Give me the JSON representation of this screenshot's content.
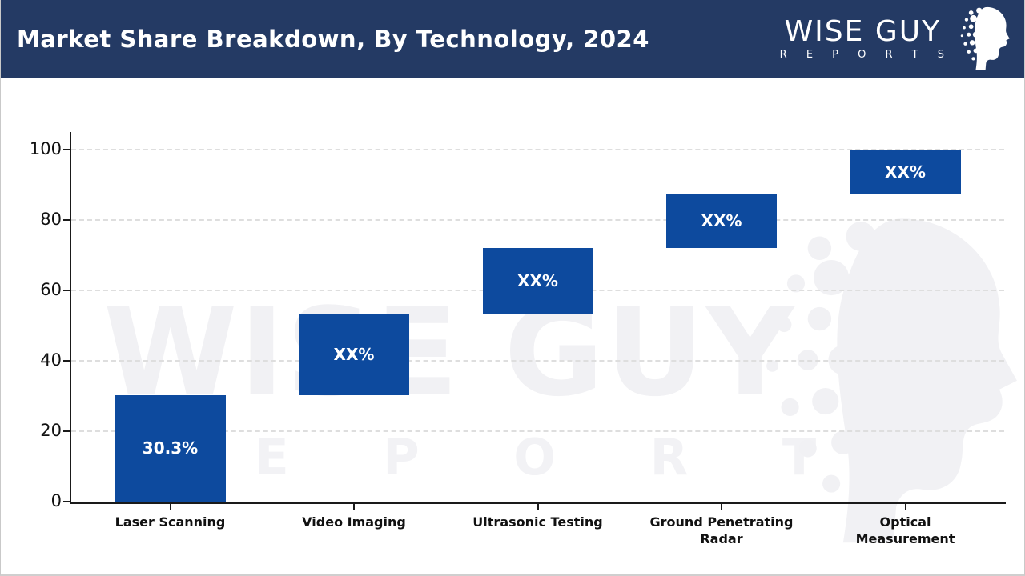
{
  "header": {
    "title": "Market Share Breakdown, By Technology, 2024",
    "logo": {
      "line1": "WISE GUY",
      "line2": "R E P O R T S"
    }
  },
  "watermark": {
    "line1": "WISE GUY",
    "line2": "R E P O R T S"
  },
  "colors": {
    "header_bg": "#243a64",
    "bar": "#0d4a9e",
    "grid": "#dedede",
    "axis": "#1a1a1a",
    "bar_label_text": "#ffffff",
    "watermark": "#f1f1f4"
  },
  "chart_data": {
    "type": "bar",
    "subtype": "waterfall",
    "title": "Market Share Breakdown, By Technology, 2024",
    "categories": [
      "Laser Scanning",
      "Video Imaging",
      "Ultrasonic Testing",
      "Ground Penetrating\nRadar",
      "Optical\nMeasurement"
    ],
    "values": [
      30.3,
      22.9,
      18.9,
      15.2,
      12.7
    ],
    "cumulative_end": [
      30.3,
      53.2,
      72.1,
      87.3,
      100.0
    ],
    "bar_labels": [
      "30.3%",
      "XX%",
      "XX%",
      "XX%",
      "XX%"
    ],
    "xlabel": "",
    "ylabel": "",
    "yticks": [
      0,
      20,
      40,
      60,
      80,
      100
    ],
    "ylim": [
      0,
      105
    ],
    "grid": "horizontal-dashed",
    "legend": "none"
  }
}
